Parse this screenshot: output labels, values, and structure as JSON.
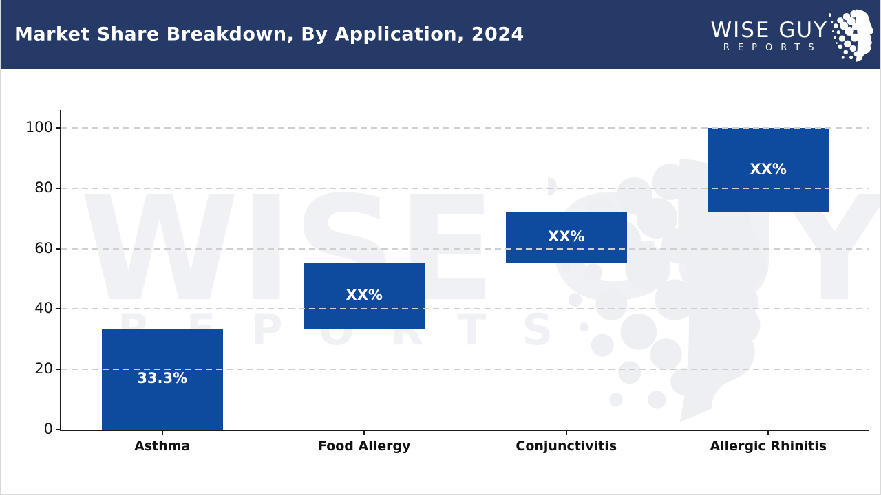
{
  "header": {
    "title": "Market Share Breakdown, By Application, 2024",
    "background_color": "#253a66",
    "title_color": "#ffffff"
  },
  "logo": {
    "brand_top": "WISE GUY",
    "brand_bottom": "REPORTS",
    "head_icon": "dotted-face-profile-icon",
    "color": "#ffffff"
  },
  "watermark": {
    "line1": "WISE GUY",
    "line2": "REPORTS",
    "color": "#f0f1f4"
  },
  "chart_data": {
    "type": "bar",
    "variant": "waterfall",
    "title": "Market Share Breakdown, By Application, 2024",
    "categories": [
      "Asthma",
      "Food Allergy",
      "Conjunctivitis",
      "Allergic Rhinitis"
    ],
    "segments": [
      {
        "category": "Asthma",
        "start": 0,
        "end": 33.3,
        "label": "33.3%"
      },
      {
        "category": "Food Allergy",
        "start": 33.3,
        "end": 55.2,
        "label": "XX%"
      },
      {
        "category": "Conjunctivitis",
        "start": 55.2,
        "end": 71.9,
        "label": "XX%"
      },
      {
        "category": "Allergic Rhinitis",
        "start": 71.9,
        "end": 100,
        "label": "XX%"
      }
    ],
    "xlabel": "",
    "ylabel": "",
    "ylim": [
      0,
      100
    ],
    "yticks": [
      0,
      20,
      40,
      60,
      80,
      100
    ],
    "grid": {
      "axis": "y",
      "style": "dashed",
      "color": "#cfcfcf",
      "drawn_over_bars": true
    },
    "legend": null,
    "bar_color": "#0e4a9e",
    "bar_label_color": "#ffffff",
    "axis_color": "#1a1a1a"
  }
}
